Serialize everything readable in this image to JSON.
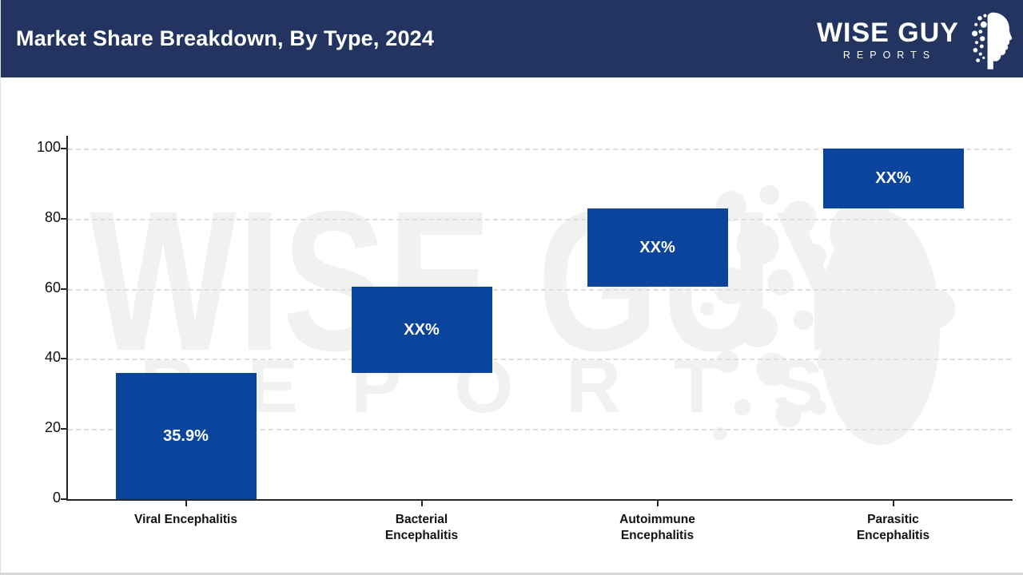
{
  "header": {
    "title": "Market Share Breakdown, By Type, 2024",
    "bg_color": "#22345f",
    "logo": {
      "wordmark": "WISE GUY",
      "subtext": "REPORTS"
    }
  },
  "watermark": {
    "line1": "WISE GUY",
    "line2": "REPORTS"
  },
  "chart_data": {
    "type": "bar",
    "variant": "floating-segment-waterfall",
    "title": "Market Share Breakdown, By Type, 2024",
    "categories": [
      "Viral Encephalitis",
      "Bacterial Encephalitis",
      "Autoimmune Encephalitis",
      "Parasitic Encephalitis"
    ],
    "category_lines": [
      [
        "Viral Encephalitis"
      ],
      [
        "Bacterial",
        "Encephalitis"
      ],
      [
        "Autoimmune",
        "Encephalitis"
      ],
      [
        "Parasitic",
        "Encephalitis"
      ]
    ],
    "segments": [
      {
        "category": "Viral Encephalitis",
        "start": 0,
        "end": 35.9,
        "label": "35.9%"
      },
      {
        "category": "Bacterial Encephalitis",
        "start": 35.9,
        "end": 60.5,
        "label": "XX%"
      },
      {
        "category": "Autoimmune Encephalitis",
        "start": 60.5,
        "end": 83,
        "label": "XX%"
      },
      {
        "category": "Parasitic Encephalitis",
        "start": 83,
        "end": 100,
        "label": "XX%"
      }
    ],
    "ylim": [
      0,
      100
    ],
    "yticks": [
      0,
      20,
      40,
      60,
      80,
      100
    ],
    "xlabel": "",
    "ylabel": "",
    "legend": "none",
    "grid": {
      "horizontal": true,
      "style": "dashed"
    },
    "colors": {
      "bar": "#0b449c",
      "bar_label": "#ffffff",
      "axis": "#262626",
      "grid": "#dedede",
      "header_bg": "#22345f",
      "watermark": "#f1f1f1"
    }
  }
}
